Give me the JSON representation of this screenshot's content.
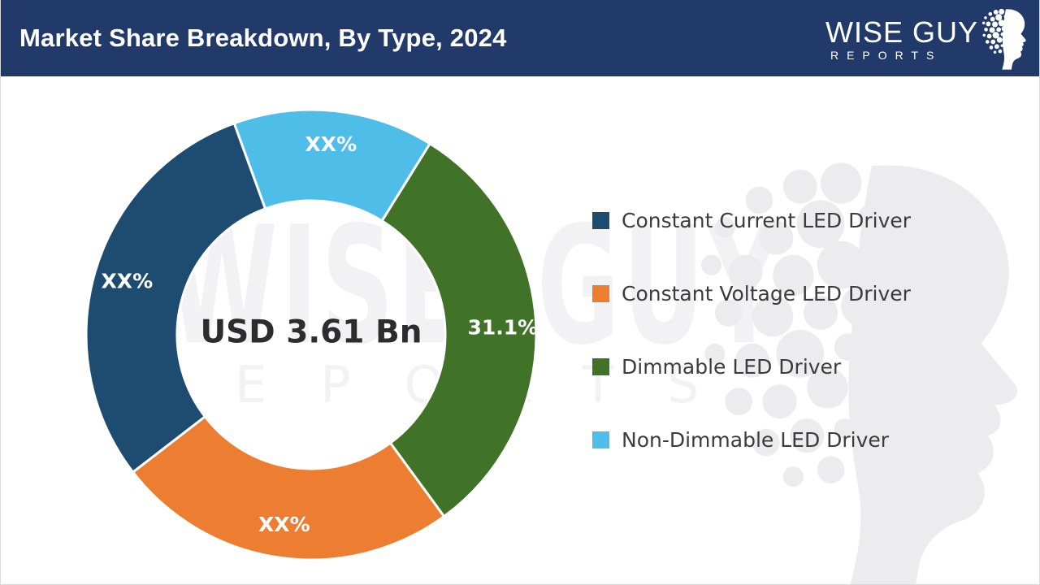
{
  "header": {
    "title": "Market Share Breakdown, By Type, 2024",
    "logo": {
      "line1": "WISE GUY",
      "line2": "REPORTS"
    }
  },
  "watermark": {
    "line1": "WISE GUY",
    "line2": "REPORTS"
  },
  "chart_data": {
    "type": "pie",
    "subtype": "donut",
    "title": "Market Share Breakdown, By Type, 2024",
    "center_label": "USD 3.61 Bn",
    "start_angle_deg": 110,
    "direction": "counterclockwise",
    "inner_radius_ratio": 0.596,
    "segments": [
      {
        "name": "Constant Current LED Driver",
        "label": "XX%",
        "value_pct": 29.9,
        "color": "#1e4b70"
      },
      {
        "name": "Constant Voltage LED Driver",
        "label": "XX%",
        "value_pct": 24.6,
        "color": "#ed7d31"
      },
      {
        "name": "Dimmable LED Driver",
        "label": "31.1%",
        "value_pct": 31.1,
        "color": "#407327"
      },
      {
        "name": "Non-Dimmable LED Driver",
        "label": "XX%",
        "value_pct": 14.4,
        "color": "#4ebde8"
      }
    ],
    "legend_position": "right"
  },
  "colors": {
    "header_bg": "#213a69",
    "segment_label_text": "#ffffff",
    "center_text": "#2d2d2d",
    "legend_text": "#3c3c3c",
    "watermark": "#f2f2f4",
    "page_border": "#d9d9d9"
  }
}
